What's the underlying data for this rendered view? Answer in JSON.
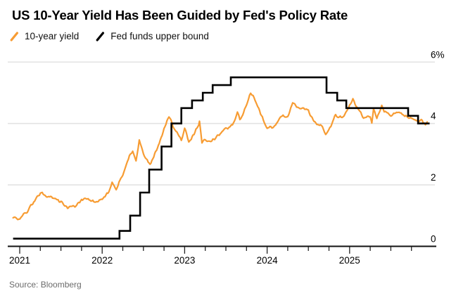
{
  "chart_data": {
    "type": "line",
    "title": "US 10-Year Yield Has Been Guided by Fed's Policy Rate",
    "source_label": "Source: Bloomberg",
    "background_color": "#ffffff",
    "grid": "horizontal",
    "legend_position": "top-left",
    "colors": {
      "ten_year_yield": "#F79C33",
      "fed_funds": "#000000",
      "gridline": "#e3e3e3",
      "axis": "#111111",
      "source_text": "#6b6b6b"
    },
    "y_axis": {
      "side": "right",
      "range": [
        0,
        6
      ],
      "unit": "%",
      "ticks": [
        {
          "value": 0,
          "label": "0"
        },
        {
          "value": 2,
          "label": "2"
        },
        {
          "value": 4,
          "label": "4"
        },
        {
          "value": 6,
          "label": "6%"
        }
      ]
    },
    "x_axis": {
      "range": [
        2020.9,
        2026.0
      ],
      "minor_tick_interval_years": 0.25,
      "ticks": [
        {
          "value": 2021,
          "label": "2021"
        },
        {
          "value": 2022,
          "label": "2022"
        },
        {
          "value": 2023,
          "label": "2023"
        },
        {
          "value": 2024,
          "label": "2024"
        },
        {
          "value": 2025,
          "label": "2025"
        }
      ]
    },
    "series": [
      {
        "name": "10-year yield",
        "color": "#F79C33",
        "line_style": "solid",
        "points": [
          [
            2020.92,
            0.93
          ],
          [
            2021.0,
            0.92
          ],
          [
            2021.08,
            1.09
          ],
          [
            2021.17,
            1.44
          ],
          [
            2021.25,
            1.74
          ],
          [
            2021.33,
            1.63
          ],
          [
            2021.42,
            1.58
          ],
          [
            2021.5,
            1.45
          ],
          [
            2021.58,
            1.24
          ],
          [
            2021.67,
            1.31
          ],
          [
            2021.75,
            1.52
          ],
          [
            2021.83,
            1.56
          ],
          [
            2021.92,
            1.43
          ],
          [
            2022.0,
            1.52
          ],
          [
            2022.08,
            1.79
          ],
          [
            2022.12,
            2.04
          ],
          [
            2022.17,
            1.84
          ],
          [
            2022.25,
            2.34
          ],
          [
            2022.33,
            2.93
          ],
          [
            2022.37,
            3.12
          ],
          [
            2022.41,
            2.75
          ],
          [
            2022.45,
            3.47
          ],
          [
            2022.5,
            3.01
          ],
          [
            2022.58,
            2.66
          ],
          [
            2022.67,
            3.19
          ],
          [
            2022.75,
            3.83
          ],
          [
            2022.81,
            4.24
          ],
          [
            2022.87,
            3.83
          ],
          [
            2022.92,
            3.68
          ],
          [
            2022.96,
            3.45
          ],
          [
            2023.0,
            3.88
          ],
          [
            2023.05,
            3.39
          ],
          [
            2023.08,
            3.52
          ],
          [
            2023.17,
            3.92
          ],
          [
            2023.18,
            4.06
          ],
          [
            2023.21,
            3.4
          ],
          [
            2023.25,
            3.47
          ],
          [
            2023.33,
            3.44
          ],
          [
            2023.42,
            3.64
          ],
          [
            2023.5,
            3.84
          ],
          [
            2023.58,
            3.96
          ],
          [
            2023.64,
            4.34
          ],
          [
            2023.67,
            4.11
          ],
          [
            2023.75,
            4.57
          ],
          [
            2023.8,
            4.99
          ],
          [
            2023.83,
            4.93
          ],
          [
            2023.92,
            4.33
          ],
          [
            2024.0,
            3.88
          ],
          [
            2024.08,
            3.91
          ],
          [
            2024.17,
            4.25
          ],
          [
            2024.25,
            4.2
          ],
          [
            2024.31,
            4.7
          ],
          [
            2024.37,
            4.5
          ],
          [
            2024.42,
            4.51
          ],
          [
            2024.5,
            4.4
          ],
          [
            2024.58,
            4.03
          ],
          [
            2024.67,
            3.9
          ],
          [
            2024.71,
            3.62
          ],
          [
            2024.75,
            3.78
          ],
          [
            2024.83,
            4.28
          ],
          [
            2024.92,
            4.17
          ],
          [
            2025.0,
            4.57
          ],
          [
            2025.04,
            4.79
          ],
          [
            2025.08,
            4.54
          ],
          [
            2025.17,
            4.21
          ],
          [
            2025.25,
            4.21
          ],
          [
            2025.27,
            3.99
          ],
          [
            2025.29,
            4.49
          ],
          [
            2025.33,
            4.16
          ],
          [
            2025.39,
            4.6
          ],
          [
            2025.42,
            4.4
          ],
          [
            2025.5,
            4.23
          ],
          [
            2025.58,
            4.37
          ],
          [
            2025.67,
            4.23
          ],
          [
            2025.75,
            4.15
          ],
          [
            2025.83,
            4.08
          ],
          [
            2025.88,
            4.1
          ],
          [
            2025.92,
            3.96
          ],
          [
            2025.94,
            4.05
          ]
        ]
      },
      {
        "name": "Fed funds upper bound",
        "color": "#000000",
        "line_style": "step",
        "points": [
          [
            2020.92,
            0.25
          ],
          [
            2022.21,
            0.5
          ],
          [
            2022.34,
            1.0
          ],
          [
            2022.46,
            1.75
          ],
          [
            2022.57,
            2.5
          ],
          [
            2022.72,
            3.25
          ],
          [
            2022.84,
            4.0
          ],
          [
            2022.96,
            4.5
          ],
          [
            2023.09,
            4.75
          ],
          [
            2023.22,
            5.0
          ],
          [
            2023.34,
            5.25
          ],
          [
            2023.56,
            5.5
          ],
          [
            2024.72,
            5.0
          ],
          [
            2024.85,
            4.75
          ],
          [
            2024.96,
            4.5
          ],
          [
            2025.71,
            4.25
          ],
          [
            2025.83,
            4.0
          ],
          [
            2025.97,
            4.0
          ]
        ]
      }
    ]
  }
}
